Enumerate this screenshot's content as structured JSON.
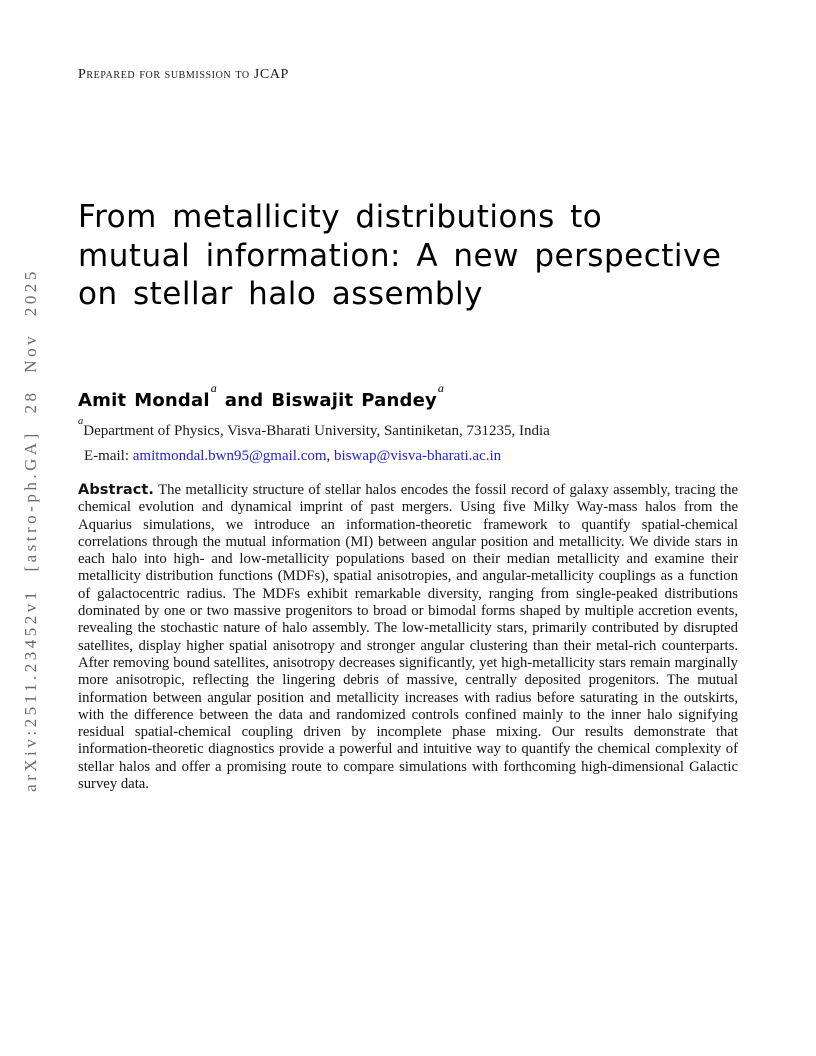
{
  "colors": {
    "link_blue": "#2323d3",
    "watermark_gray": "#6b6b6b",
    "ink": "#141414",
    "page_background": "#ffffff"
  },
  "header": {
    "note": "Prepared for submission to JCAP"
  },
  "arxiv": {
    "watermark": "arXiv:2511.23452v1 [astro-ph.GA] 28 Nov 2025"
  },
  "title": {
    "full": "From metallicity distributions to mutual information: A new perspective on stellar halo assembly",
    "lines": [
      "From metallicity distributions to",
      "mutual information: A new perspective",
      "on stellar halo assembly"
    ]
  },
  "authors": {
    "list": [
      {
        "name": "Amit Mondal",
        "mark": "a"
      },
      {
        "name": "Biswajit Pandey",
        "mark": "a"
      }
    ],
    "separator": "and"
  },
  "affiliation": {
    "mark": "a",
    "text": "Department of Physics, Visva-Bharati University, Santiniketan, 731235, India"
  },
  "contact": {
    "label": "E-mail:",
    "emails": [
      "amitmondal.bwn95@gmail.com",
      "biswap@visva-bharati.ac.in"
    ],
    "separator": ","
  },
  "abstract": {
    "label": "Abstract.",
    "text": "The metallicity structure of stellar halos encodes the fossil record of galaxy assembly, tracing the chemical evolution and dynamical imprint of past mergers. Using five Milky Way-mass halos from the Aquarius simulations, we introduce an information-theoretic framework to quantify spatial-chemical correlations through the mutual information (MI) between angular position and metallicity. We divide stars in each halo into high- and low-metallicity populations based on their median metallicity and examine their metallicity distribution functions (MDFs), spatial anisotropies, and angular-metallicity couplings as a function of galactocentric radius. The MDFs exhibit remarkable diversity, ranging from single-peaked distributions dominated by one or two massive progenitors to broad or bimodal forms shaped by multiple accretion events, revealing the stochastic nature of halo assembly. The low-metallicity stars, primarily contributed by disrupted satellites, display higher spatial anisotropy and stronger angular clustering than their metal-rich counterparts. After removing bound satellites, anisotropy decreases significantly, yet high-metallicity stars remain marginally more anisotropic, reflecting the lingering debris of massive, centrally deposited progenitors. The mutual information between angular position and metallicity increases with radius before saturating in the outskirts, with the difference between the data and randomized controls confined mainly to the inner halo signifying residual spatial-chemical coupling driven by incomplete phase mixing. Our results demonstrate that information-theoretic diagnostics provide a powerful and intuitive way to quantify the chemical complexity of stellar halos and offer a promising route to compare simulations with forthcoming high-dimensional Galactic survey data."
  }
}
